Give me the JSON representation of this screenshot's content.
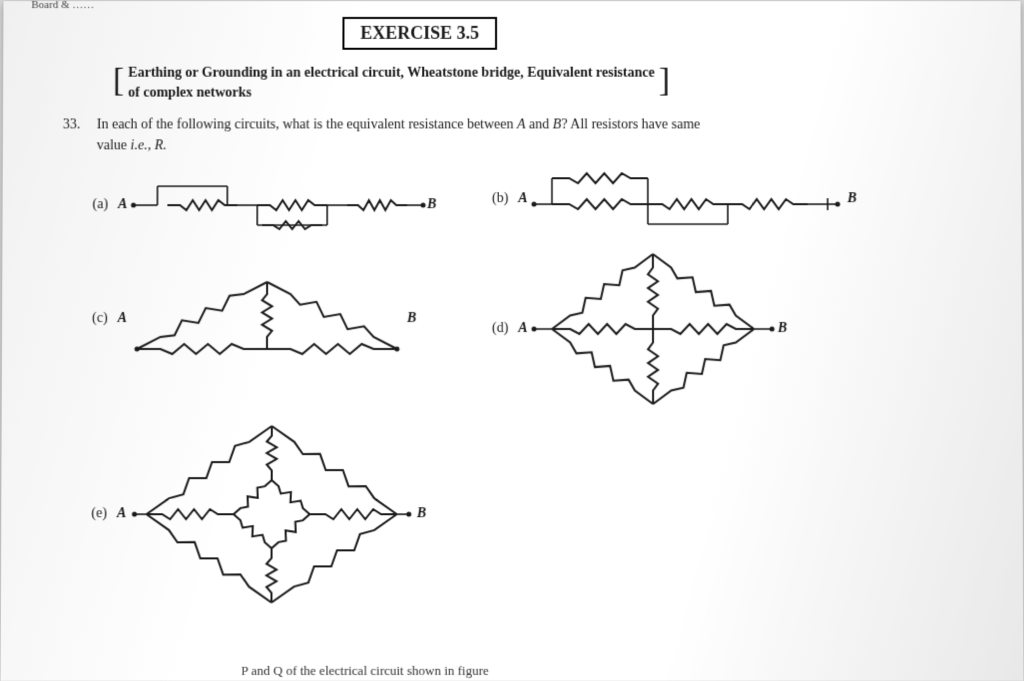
{
  "header_cut": "Board & ……",
  "title": "EXERCISE 3.5",
  "subtitle_line1": "Earthing or Grounding in an electrical circuit, Wheatstone bridge, Equivalent resistance",
  "subtitle_line2": "of complex networks",
  "question_num": "33.",
  "question_text_1": "In each of the following circuits, what is the equivalent resistance between ",
  "question_A": "A",
  "question_and": " and ",
  "question_B": "B",
  "question_text_2": "? All resistors have same",
  "question_text_3": "value ",
  "question_ie": "i.e.,",
  "question_R": " R.",
  "opts": {
    "a": "(a)",
    "b": "(b)",
    "c": "(c)",
    "d": "(d)",
    "e": "(e)"
  },
  "terminals": {
    "A": "A",
    "B": "B"
  },
  "bottom_cut": "P and Q of the electrical circuit shown in figure",
  "style": {
    "stroke": "#1a1a1a",
    "stroke_w": 1.6,
    "zig_w": 2
  }
}
